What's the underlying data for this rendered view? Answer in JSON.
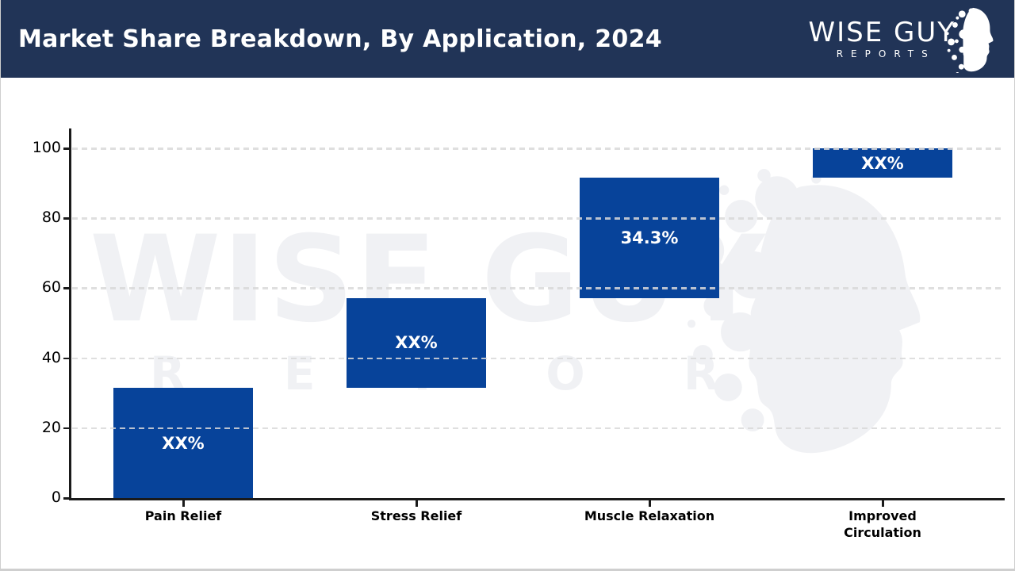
{
  "header": {
    "title": "Market Share Breakdown, By Application, 2024",
    "logo": {
      "line1": "WISE GUY",
      "line2": "REPORTS"
    }
  },
  "watermark": {
    "line1": "WISE GUY",
    "line2": "R E P O R T S"
  },
  "chart_data": {
    "type": "bar",
    "subtype": "floating-waterfall",
    "title": "Market Share Breakdown, By Application, 2024",
    "categories": [
      "Pain Relief",
      "Stress Relief",
      "Muscle Relaxation",
      "Improved\nCirculation"
    ],
    "segments": [
      {
        "category": "Pain Relief",
        "start": 0,
        "end": 31.5,
        "label": "XX%"
      },
      {
        "category": "Stress Relief",
        "start": 31.5,
        "end": 57.2,
        "label": "XX%"
      },
      {
        "category": "Muscle Relaxation",
        "start": 57.2,
        "end": 91.5,
        "label": "34.3%"
      },
      {
        "category": "Improved Circulation",
        "start": 91.5,
        "end": 100,
        "label": "XX%"
      }
    ],
    "yticks": [
      0,
      20,
      40,
      60,
      80,
      100
    ],
    "ylim": [
      0,
      100
    ],
    "xlabel": "",
    "ylabel": "",
    "grid": "horizontal-dashed",
    "legend": "none",
    "colors": {
      "bar": "#07439a",
      "gridline": "#d9d9d9",
      "axis": "#1a1a1a",
      "bar_label_text": "#ffffff",
      "header_bg": "#213457",
      "watermark": "#f0f1f4"
    }
  }
}
